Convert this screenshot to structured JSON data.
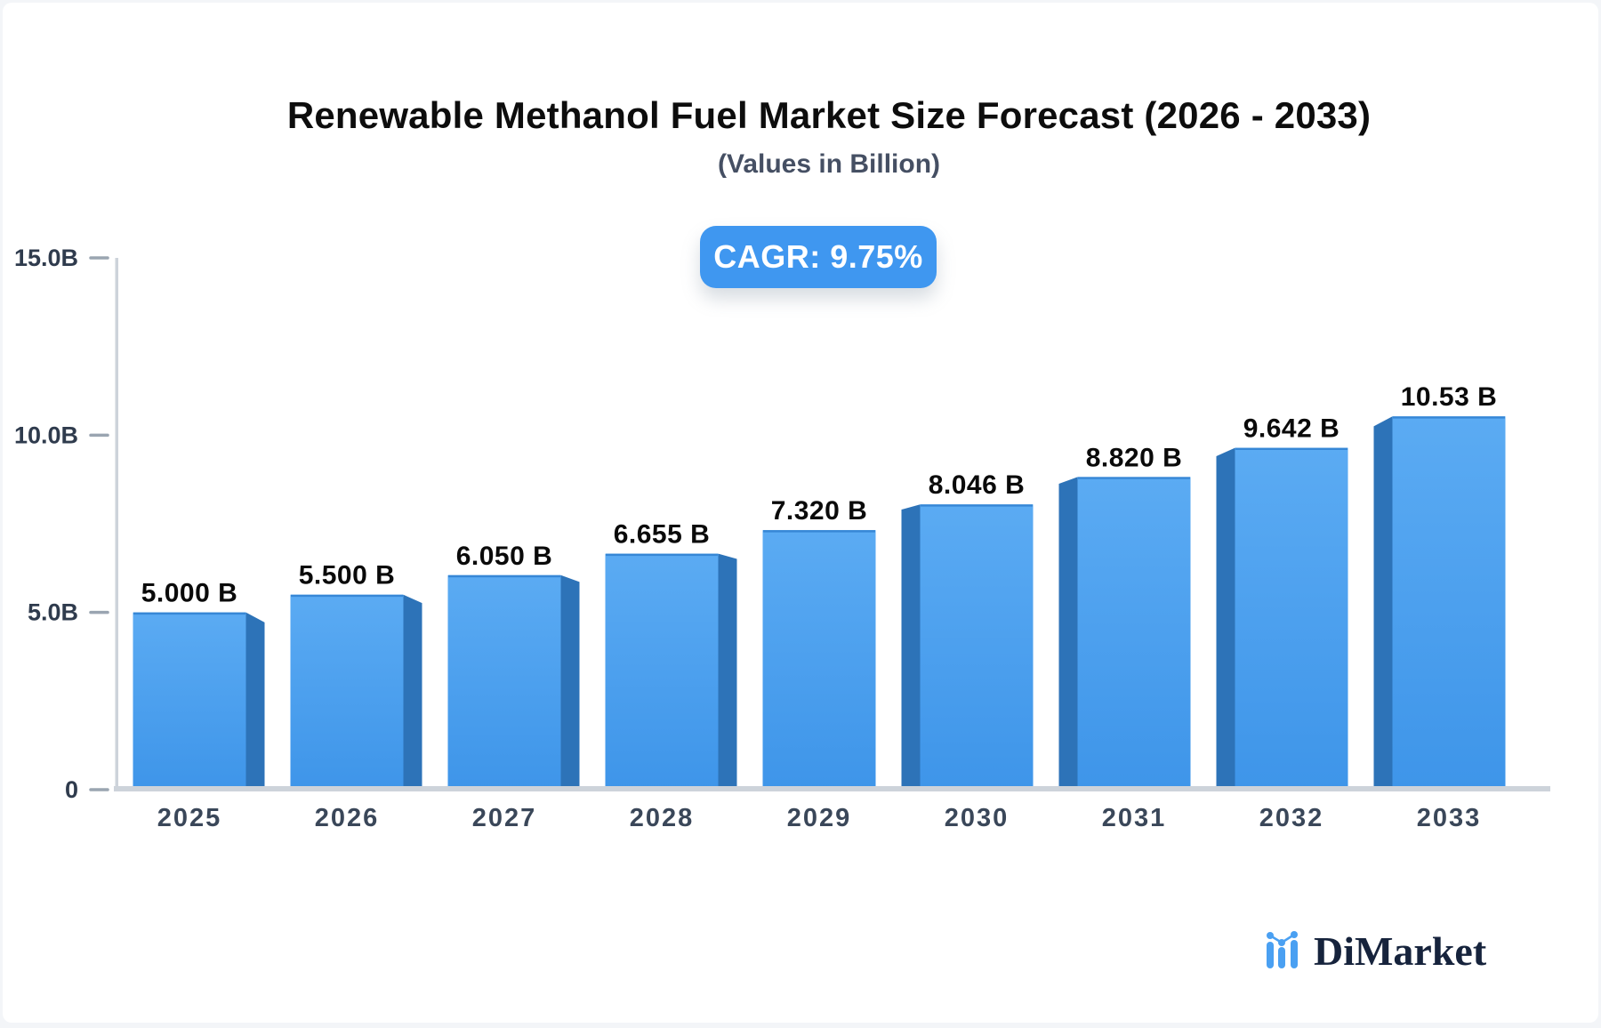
{
  "logo": {
    "text": "DiMarket"
  },
  "colors": {
    "page_bg": "#f3f5f8",
    "card_bg": "#ffffff",
    "title_text": "#0d0d0d",
    "subtitle_text": "#454f63",
    "badge_bg": "#3f97f0",
    "badge_text": "#ffffff",
    "bar_top": "#5babf3",
    "bar_bottom": "#3e95e9",
    "bar_side": "#2d73b8",
    "bar_edge": "#3787d6",
    "axis_line": "#cdd3da",
    "tick_mark": "#9aa5b1",
    "tick_label": "#2f3b4d",
    "x_label": "#3a4759",
    "value_label": "#0a0a0a",
    "logo_blue": "#4aa0f2",
    "logo_navy": "#16233c"
  },
  "chart_data": {
    "type": "bar",
    "title": "Renewable Methanol Fuel Market Size Forecast (2026 - 2033)",
    "subtitle": "(Values in Billion)",
    "annotation": "CAGR: 9.75%",
    "categories": [
      "2025",
      "2026",
      "2027",
      "2028",
      "2029",
      "2030",
      "2031",
      "2032",
      "2033"
    ],
    "values": [
      5.0,
      5.5,
      6.05,
      6.655,
      7.32,
      8.046,
      8.82,
      9.642,
      10.53
    ],
    "value_labels": [
      "5.000 B",
      "5.500 B",
      "6.050 B",
      "6.655 B",
      "7.320 B",
      "8.046 B",
      "8.820 B",
      "9.642 B",
      "10.53 B"
    ],
    "xlabel": "",
    "ylabel": "",
    "ylim": [
      0,
      15
    ],
    "yticks": {
      "values": [
        0,
        5,
        10,
        15
      ],
      "labels": [
        "0",
        "5.0B",
        "10.0B",
        "15.0B"
      ]
    },
    "grid": false,
    "legend": "none",
    "bar_style": "3d-perspective"
  }
}
